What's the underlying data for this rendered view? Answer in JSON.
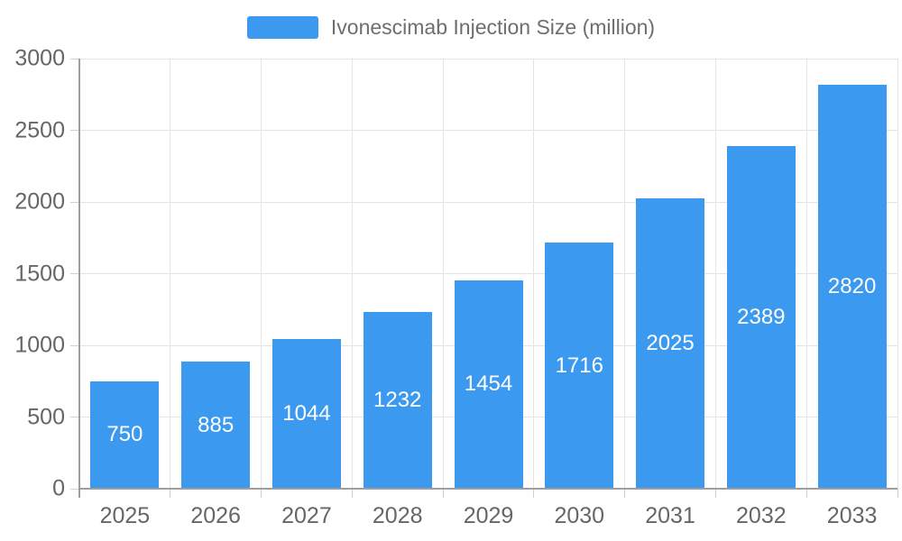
{
  "legend": {
    "label": "Ivonescimab Injection Size (million)"
  },
  "colors": {
    "bar": "#3B99F0",
    "grid": "#E4E4E4",
    "axis": "#9E9E9E",
    "tick": "#CFCFCF",
    "axis_label_text": "#666666",
    "legend_text": "#6E6E6E",
    "bar_label_text": "#FFFFFF",
    "background": "#FFFFFF"
  },
  "chart_data": {
    "type": "bar",
    "title": "Ivonescimab Injection Size (million)",
    "categories": [
      "2025",
      "2026",
      "2027",
      "2028",
      "2029",
      "2030",
      "2031",
      "2032",
      "2033"
    ],
    "values": [
      750,
      885,
      1044,
      1232,
      1454,
      1716,
      2025,
      2389,
      2820
    ],
    "xlabel": "",
    "ylabel": "",
    "ylim": [
      0,
      3000
    ],
    "yticks": [
      0,
      500,
      1000,
      1500,
      2000,
      2500,
      3000
    ],
    "grid": true,
    "legend_position": "top-center",
    "value_label_position": "inside-center"
  }
}
